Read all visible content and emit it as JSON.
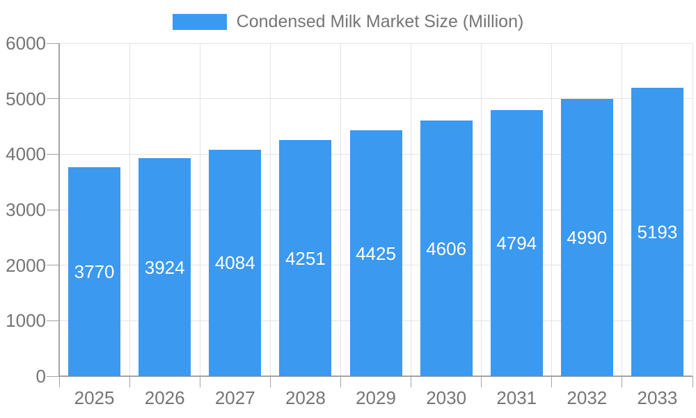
{
  "chart_data": {
    "type": "bar",
    "title": "Condensed Milk Market Size (Million)",
    "series_name": "Condensed Milk Market Size (Million)",
    "categories": [
      "2025",
      "2026",
      "2027",
      "2028",
      "2029",
      "2030",
      "2031",
      "2032",
      "2033"
    ],
    "values": [
      3770,
      3924,
      4084,
      4251,
      4425,
      4606,
      4794,
      4990,
      5193
    ],
    "xlabel": "",
    "ylabel": "",
    "ylim": [
      0,
      6000
    ],
    "yticks": [
      0,
      1000,
      2000,
      3000,
      4000,
      5000,
      6000
    ],
    "grid": true,
    "legend_position": "top",
    "value_label_position": "inside-center"
  },
  "legend": {
    "label": "Condensed Milk Market Size (Million)"
  },
  "colors": {
    "bar": "#3B99F0",
    "grid": "#E3E3E3",
    "axis": "#A3A3A3",
    "tick": "#A3A3A3",
    "tick_label": "#757575",
    "value_label": "#FFFFFF",
    "background": "#FFFFFF"
  }
}
